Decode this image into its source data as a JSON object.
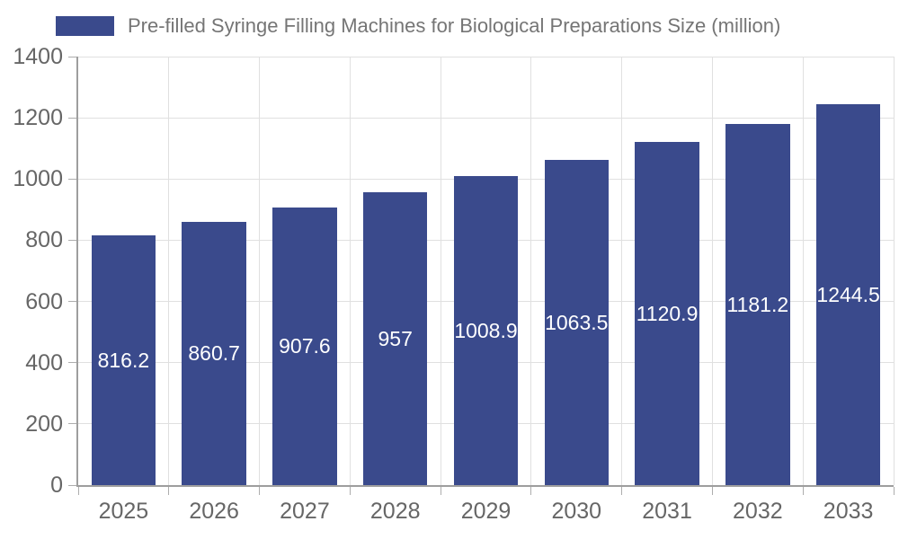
{
  "legend": {
    "label": "Pre-filled Syringe Filling Machines for Biological Preparations Size (million)"
  },
  "colors": {
    "bar": "#3A4A8C",
    "grid": "#E0E0E0",
    "axis": "#9E9E9E",
    "tick_mark": "#ADADAD",
    "tick_label": "#666666",
    "legend_text": "#757575",
    "value_label": "#FFFFFF",
    "background": "#FFFFFF"
  },
  "chart_data": {
    "type": "bar",
    "title": "Pre-filled Syringe Filling Machines for Biological Preparations Size (million)",
    "categories": [
      "2025",
      "2026",
      "2027",
      "2028",
      "2029",
      "2030",
      "2031",
      "2032",
      "2033"
    ],
    "series": [
      {
        "name": "Pre-filled Syringe Filling Machines for Biological Preparations Size (million)",
        "values": [
          816.2,
          860.7,
          907.6,
          957,
          1008.9,
          1063.5,
          1120.9,
          1181.2,
          1244.5
        ]
      }
    ],
    "xlabel": "",
    "ylabel": "",
    "ylim": [
      0,
      1400
    ],
    "yticks": [
      0,
      200,
      400,
      600,
      800,
      1000,
      1200,
      1400
    ],
    "grid": true,
    "legend_position": "top-left",
    "value_labels_shown": true,
    "value_label_position": "inside-center"
  }
}
